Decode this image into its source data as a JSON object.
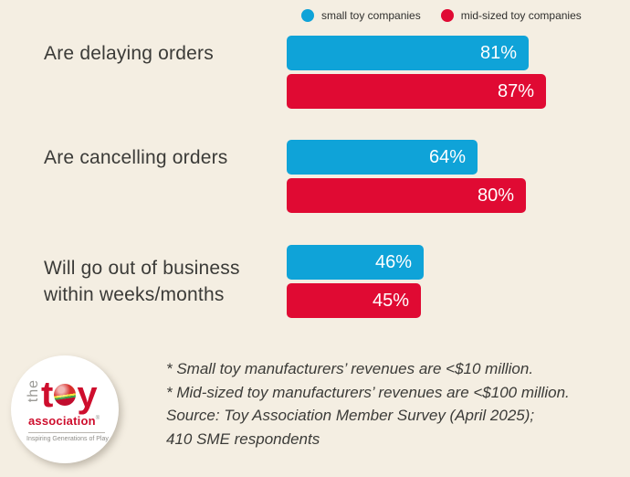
{
  "background_color": "#F4EEE2",
  "legend": {
    "items": [
      {
        "label": "small toy companies",
        "color": "#0FA3D8"
      },
      {
        "label": "mid-sized toy companies",
        "color": "#E00A33"
      }
    ]
  },
  "chart_data": {
    "type": "bar",
    "orientation": "horizontal",
    "unit": "percent",
    "xlim": [
      0,
      100
    ],
    "grid": false,
    "legend_position": "top",
    "value_label_position": "inside-end",
    "categories": [
      "Are delaying orders",
      "Are cancelling orders",
      "Will go out of business within weeks/months"
    ],
    "series": [
      {
        "name": "small toy companies",
        "color": "#0FA3D8",
        "values": [
          81,
          64,
          46
        ],
        "labels": [
          "81%",
          "64%",
          "46%"
        ]
      },
      {
        "name": "mid-sized toy companies",
        "color": "#E00A33",
        "values": [
          87,
          80,
          45
        ],
        "labels": [
          "87%",
          "80%",
          "45%"
        ]
      }
    ]
  },
  "footnotes": {
    "lines": [
      "* Small toy manufacturers’ revenues are <$10 million.",
      "* Mid-sized toy manufacturers’  revenues are <$100 million.",
      "Source: Toy Association Member Survey (April 2025);",
      "410 SME respondents"
    ]
  },
  "logo": {
    "the": "the",
    "toy_t": "t",
    "toy_y": "y",
    "association": "association",
    "registered_mark": "®",
    "tagline": "Inspiring Generations of Play"
  }
}
